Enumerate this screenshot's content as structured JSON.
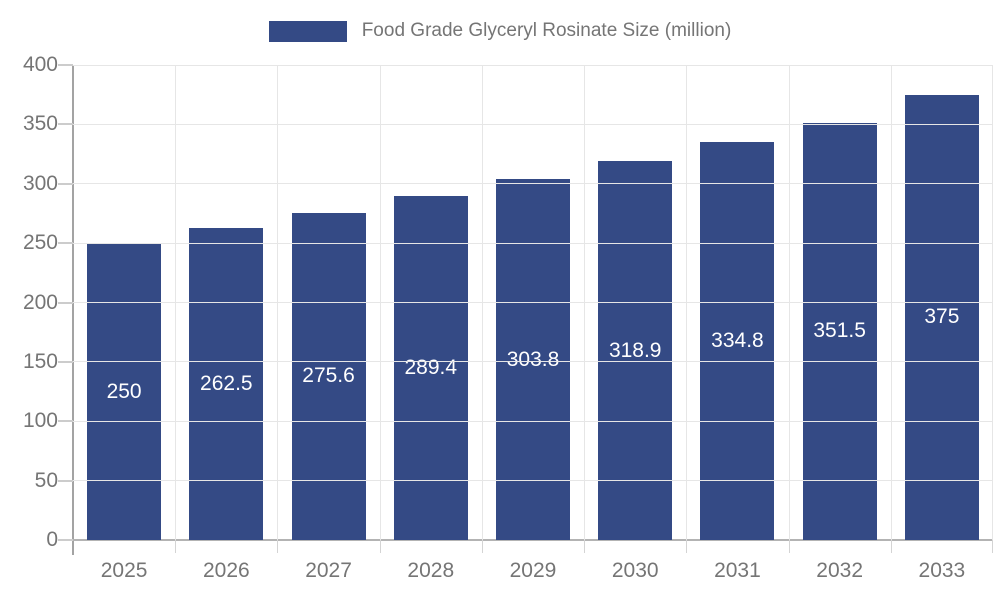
{
  "legend": {
    "label": "Food Grade Glyceryl Rosinate Size (million)"
  },
  "chart_data": {
    "type": "bar",
    "title": "Food Grade Glyceryl Rosinate Size (million)",
    "categories": [
      "2025",
      "2026",
      "2027",
      "2028",
      "2029",
      "2030",
      "2031",
      "2032",
      "2033"
    ],
    "values": [
      250,
      262.5,
      275.6,
      289.4,
      303.8,
      318.9,
      334.8,
      351.5,
      375
    ],
    "xlabel": "",
    "ylabel": "",
    "ylim": [
      0,
      400
    ],
    "yticks": [
      0,
      50,
      100,
      150,
      200,
      250,
      300,
      350,
      400
    ],
    "grid": true,
    "legend_position": "top",
    "bar_color": "#344a85",
    "value_label_color": "#ffffff",
    "axis_text_color": "#757575",
    "grid_color": "#e6e6e6"
  }
}
